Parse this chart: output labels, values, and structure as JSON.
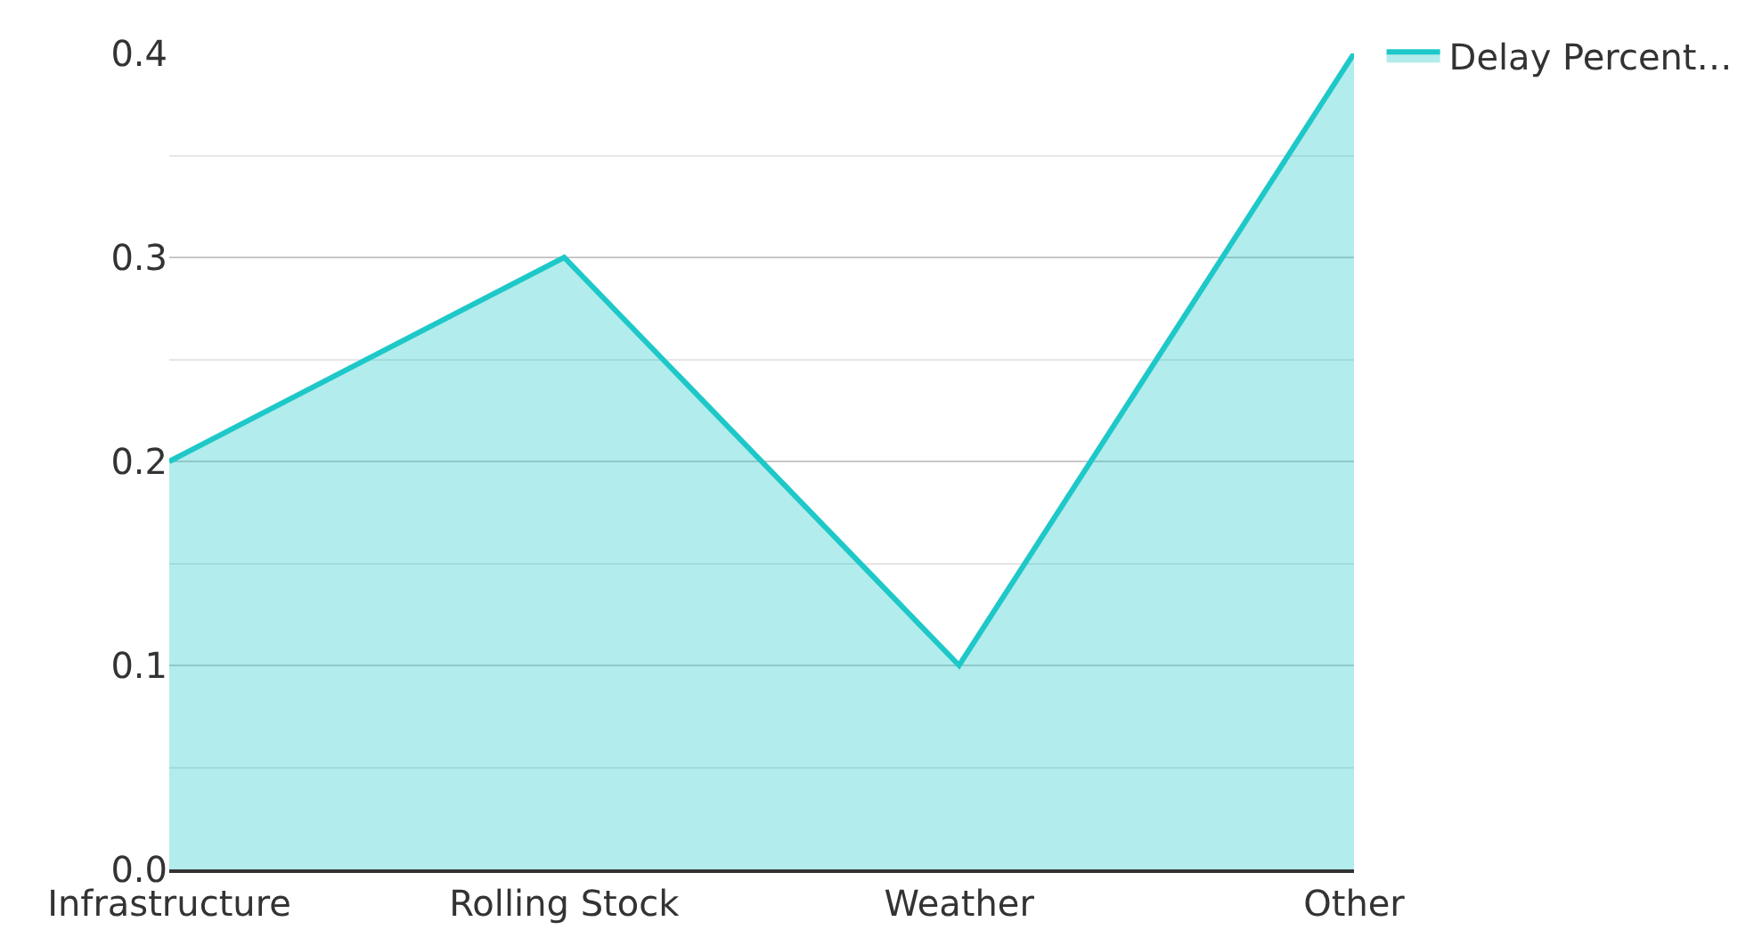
{
  "chart_data": {
    "type": "area",
    "categories": [
      "Infrastructure",
      "Rolling Stock",
      "Weather",
      "Other"
    ],
    "series": [
      {
        "name": "Delay Percent…",
        "color": "#1ec8c8",
        "values": [
          0.2,
          0.3,
          0.1,
          0.4
        ]
      }
    ],
    "ylim": [
      0,
      0.4
    ],
    "yticks": [
      {
        "value": 0,
        "label": "0.0"
      },
      {
        "value": 0.05,
        "label": null
      },
      0.1,
      {
        "value": 0.15,
        "label": null
      },
      0.2,
      {
        "value": 0.25,
        "label": null
      },
      0.3,
      {
        "value": 0.35,
        "label": null
      },
      0.4
    ],
    "grid": "y",
    "legend": "top right"
  }
}
